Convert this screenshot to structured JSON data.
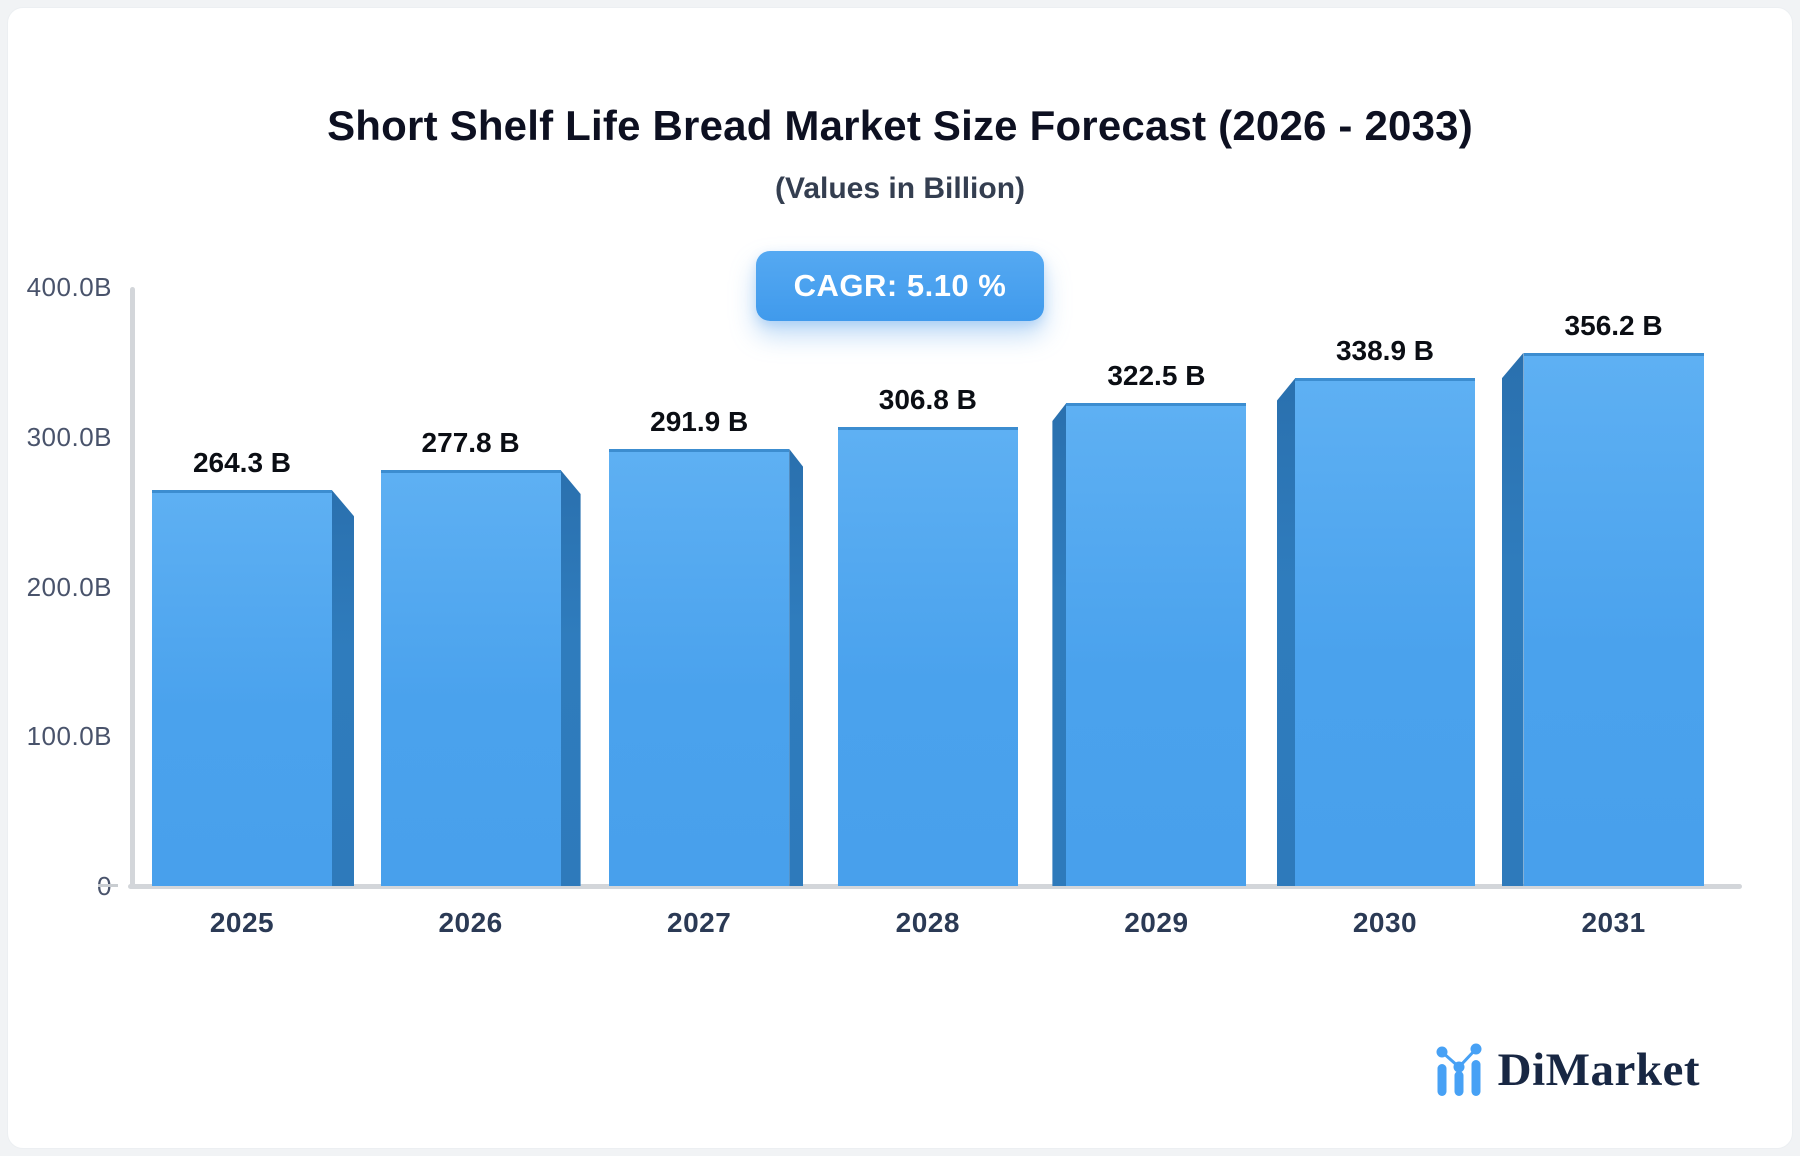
{
  "page": {
    "background": "#f1f3f5",
    "card_background": "#ffffff"
  },
  "chart_data": {
    "type": "bar",
    "title": "Short Shelf Life Bread Market Size Forecast (2026 - 2033)",
    "subtitle": "(Values in Billion)",
    "cagr_badge": "CAGR: 5.10 %",
    "categories": [
      "2025",
      "2026",
      "2027",
      "2028",
      "2029",
      "2030",
      "2031"
    ],
    "values": [
      264.3,
      277.8,
      291.9,
      306.8,
      322.5,
      338.9,
      356.2
    ],
    "value_labels": [
      "264.3 B",
      "277.8 B",
      "291.9 B",
      "306.8 B",
      "322.5 B",
      "338.9 B",
      "356.2 B"
    ],
    "unit": "Billion",
    "ylim": [
      0,
      400
    ],
    "y_ticks": [
      {
        "value": 0,
        "label": "0"
      },
      {
        "value": 100,
        "label": "100.0B"
      },
      {
        "value": 200,
        "label": "200.0B"
      },
      {
        "value": 300,
        "label": "300.0B"
      },
      {
        "value": 400,
        "label": "400.0B"
      }
    ],
    "grid": false,
    "legend": false,
    "bar_style": "3d-perspective-center-vanishing",
    "colors": {
      "bar_face_top": "#5eb0f3",
      "bar_face_bottom": "#48a0ec",
      "bar_side": "#2e7abb",
      "badge_blue": "#47a0ef",
      "axis_gray": "#d3d6da",
      "title_color": "#0d1021",
      "label_navy": "#2b3a55"
    }
  },
  "logo": {
    "text": "DiMarket",
    "icon": "bar-chart-logo-icon",
    "icon_color": "#47a1f5",
    "text_color": "#182743"
  }
}
